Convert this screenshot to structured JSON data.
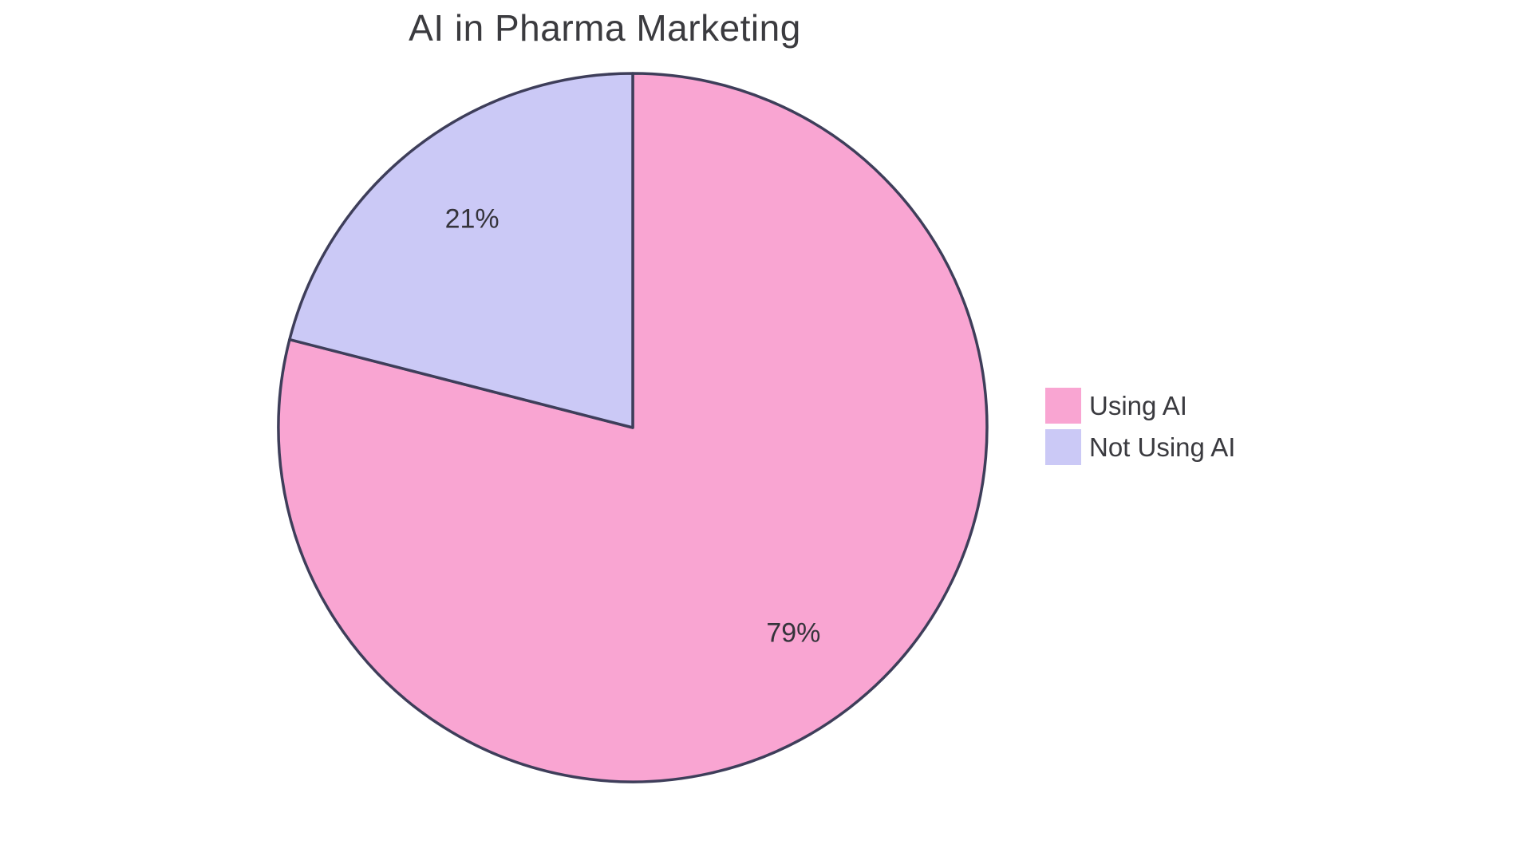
{
  "title": "AI in Pharma Marketing",
  "chart_data": {
    "type": "pie",
    "title": "AI in Pharma Marketing",
    "labels": [
      "Using AI",
      "Not Using AI"
    ],
    "values": [
      79,
      21
    ],
    "unit": "percent",
    "slice_labels": [
      "79%",
      "21%"
    ],
    "colors": [
      "#f9a5d2",
      "#cbc9f6"
    ],
    "stroke_color": "#3e3e5a",
    "stroke_width": 3.5,
    "start_angle_deg": 0,
    "direction": "clockwise",
    "legend_position": "right",
    "background": "#ffffff"
  },
  "legend": {
    "items": [
      {
        "label": "Using AI",
        "color": "#f9a5d2"
      },
      {
        "label": "Not Using AI",
        "color": "#cbc9f6"
      }
    ]
  }
}
